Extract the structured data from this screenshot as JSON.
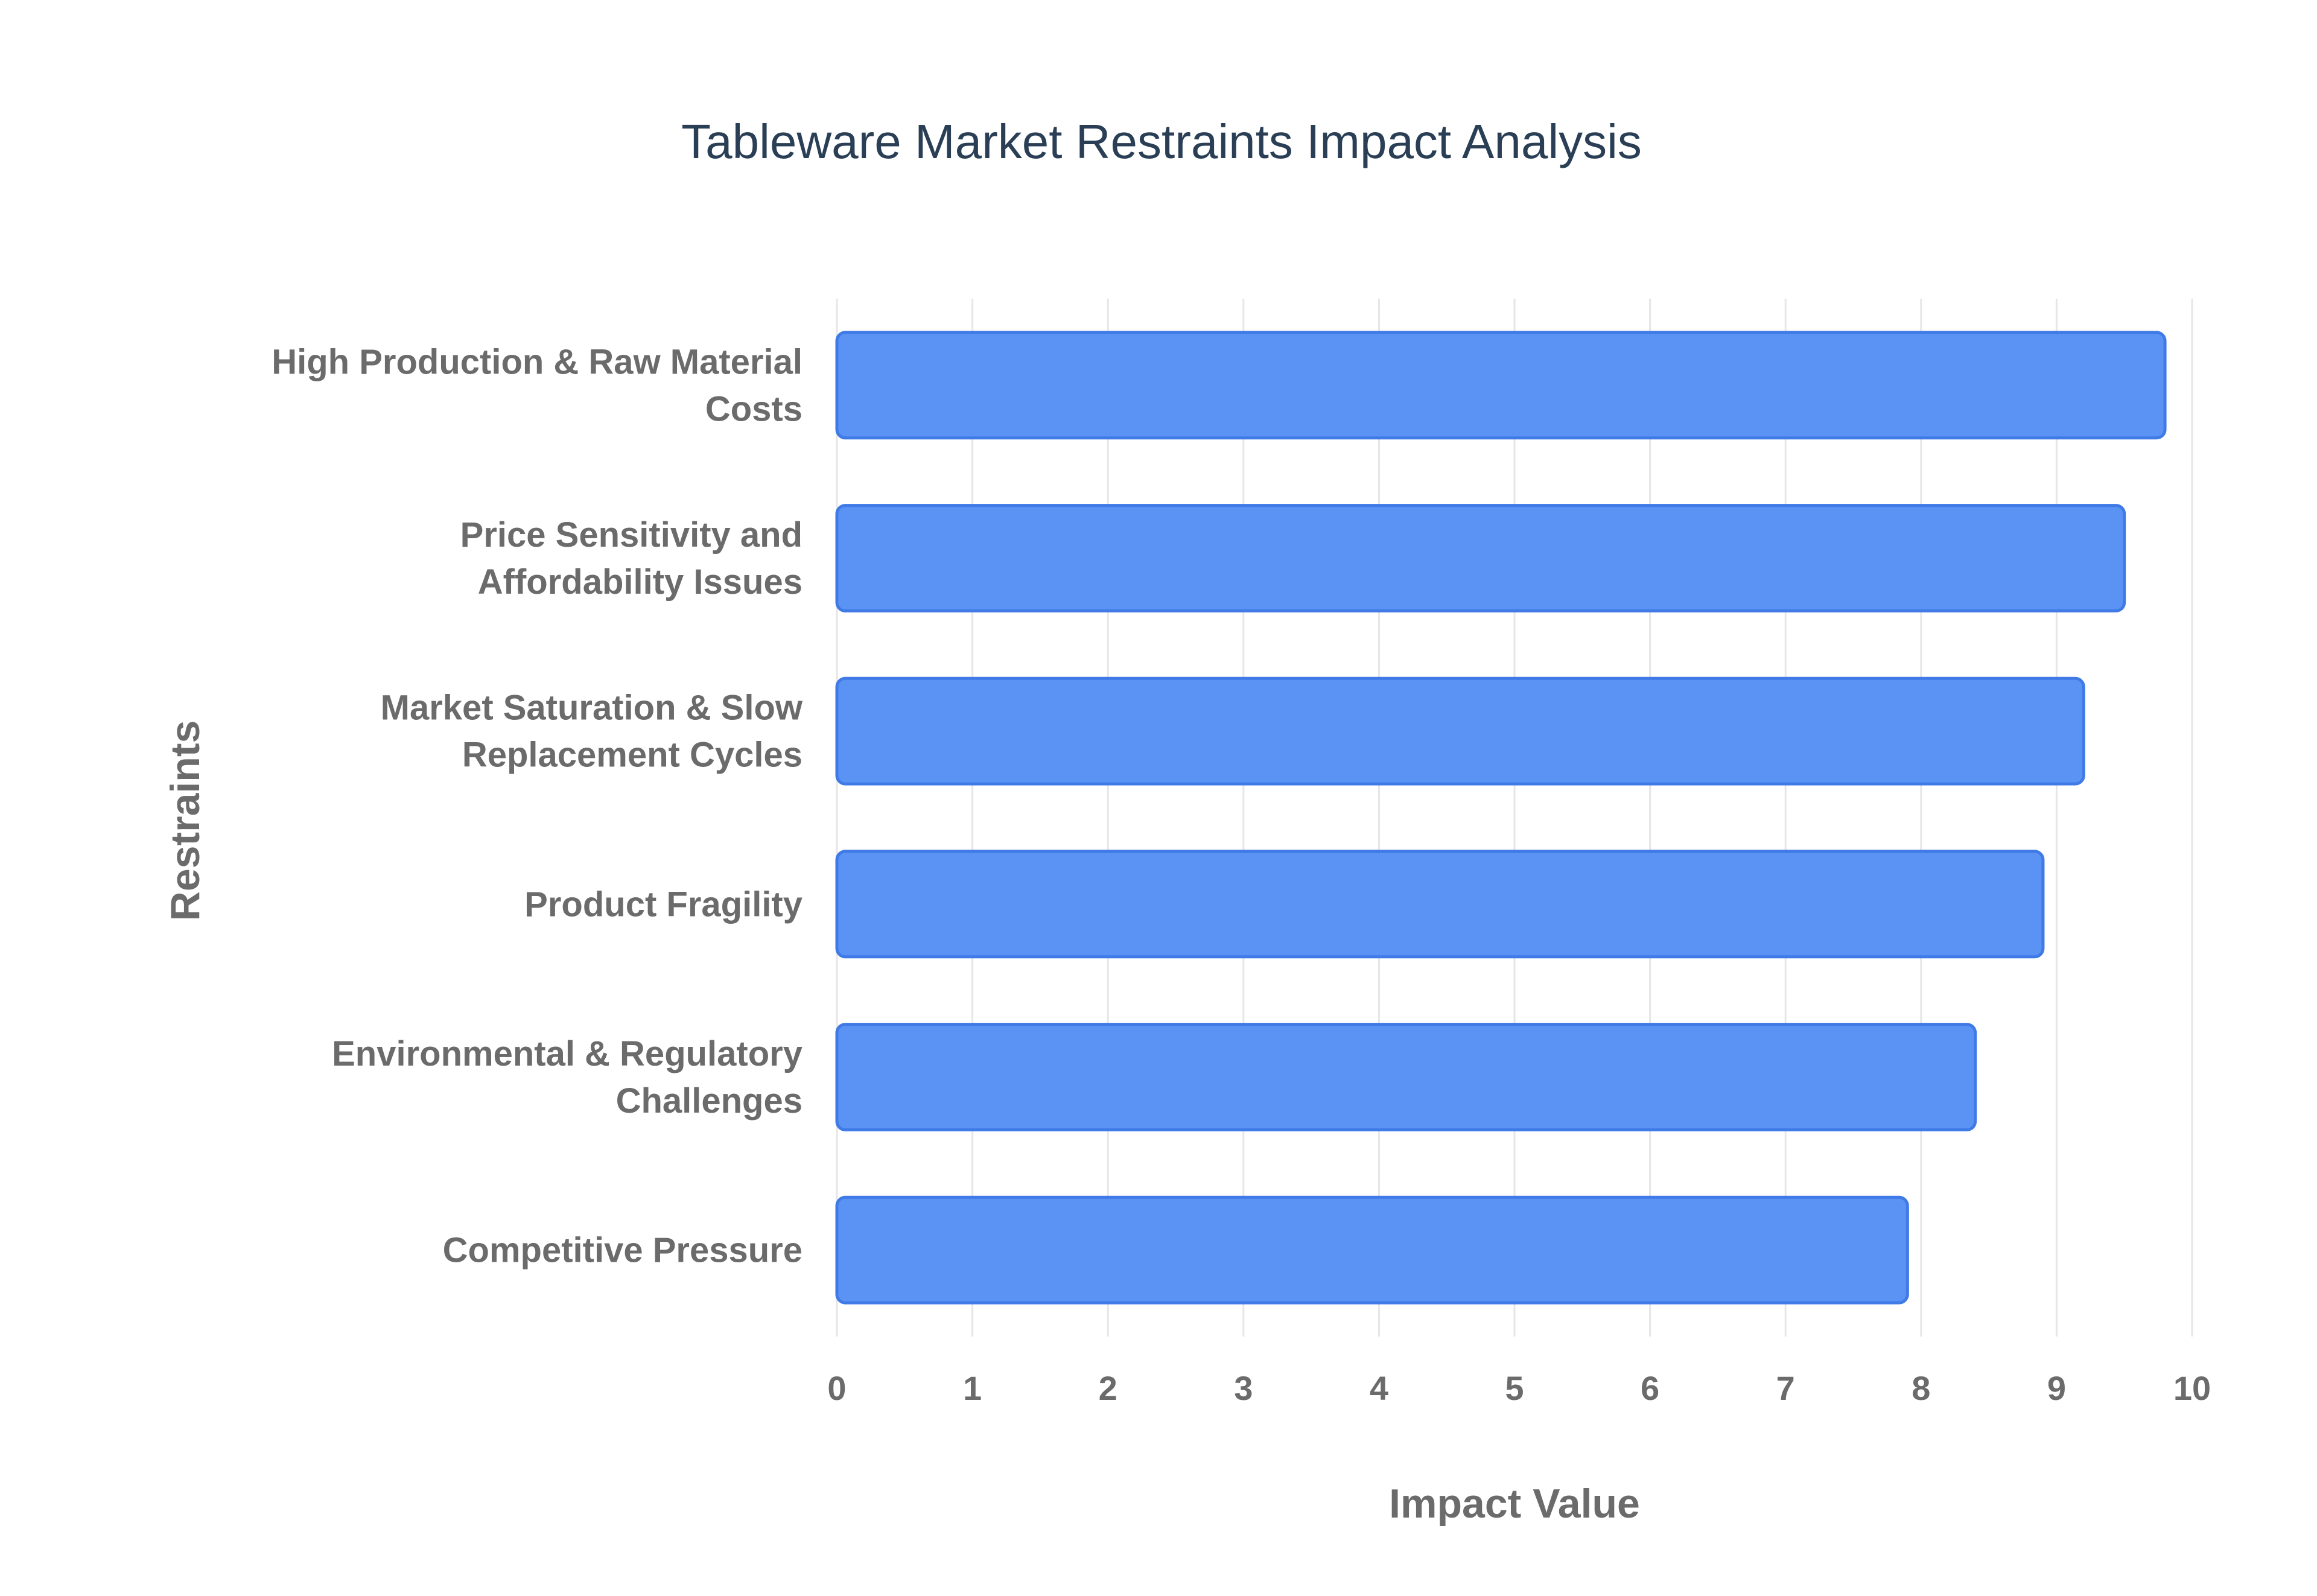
{
  "chart_data": {
    "type": "bar",
    "orientation": "horizontal",
    "title": "Tableware Market Restraints Impact Analysis",
    "xlabel": "Impact Value",
    "ylabel": "Restraints",
    "xlim": [
      0,
      10
    ],
    "x_ticks": [
      "0",
      "1",
      "2",
      "3",
      "4",
      "5",
      "6",
      "7",
      "8",
      "9",
      "10"
    ],
    "grid": true,
    "legend": "none",
    "categories": [
      [
        "High Production & Raw Material",
        "Costs"
      ],
      [
        "Price Sensitivity and",
        "Affordability Issues"
      ],
      [
        "Market Saturation & Slow",
        "Replacement Cycles"
      ],
      [
        "Product Fragility"
      ],
      [
        "Environmental & Regulatory",
        "Challenges"
      ],
      [
        "Competitive Pressure"
      ]
    ],
    "values": [
      9.8,
      9.5,
      9.2,
      8.9,
      8.4,
      7.9
    ],
    "colors": {
      "bar_fill": "#5b93f5",
      "bar_stroke": "#3f7ae6",
      "title": "#2a3f55",
      "labels": "#6b6b6b",
      "grid": "#e6e6e6"
    }
  }
}
